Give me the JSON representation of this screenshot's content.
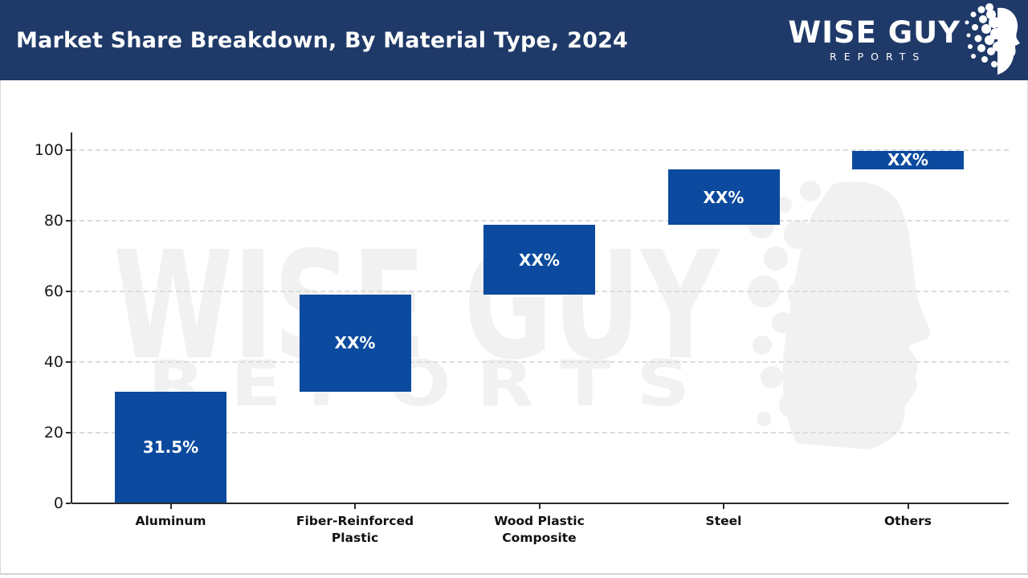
{
  "header": {
    "title": "Market Share Breakdown, By Material Type, 2024",
    "bg_color": "#1f3a68",
    "logo": {
      "line1": "WISE GUY",
      "line2": "REPORTS"
    }
  },
  "watermark": {
    "line1": "WISE GUY",
    "line2": "R E P O R T S"
  },
  "chart_data": {
    "type": "bar",
    "variant": "waterfall",
    "title": "Market Share Breakdown, By Material Type, 2024",
    "categories": [
      "Aluminum",
      "Fiber-Reinforced\nPlastic",
      "Wood Plastic\nComposite",
      "Steel",
      "Others"
    ],
    "bars": [
      {
        "category": "Aluminum",
        "start": 0,
        "end": 31.5,
        "label": "31.5%"
      },
      {
        "category": "Fiber-Reinforced Plastic",
        "start": 31.5,
        "end": 59,
        "label": "XX%"
      },
      {
        "category": "Wood Plastic Composite",
        "start": 59,
        "end": 78.7,
        "label": "XX%"
      },
      {
        "category": "Steel",
        "start": 78.7,
        "end": 94.4,
        "label": "XX%"
      },
      {
        "category": "Others",
        "start": 94.4,
        "end": 99.7,
        "label": "XX%"
      }
    ],
    "y_ticks": [
      0,
      20,
      40,
      60,
      80,
      100
    ],
    "ylim": [
      0,
      107
    ],
    "xlabel": "",
    "ylabel": "",
    "grid": "horizontal-dashed",
    "legend": "none",
    "bar_color": "#0b4a9e",
    "bar_label_color": "#ffffff",
    "axis_color": "#2b2b2b"
  }
}
